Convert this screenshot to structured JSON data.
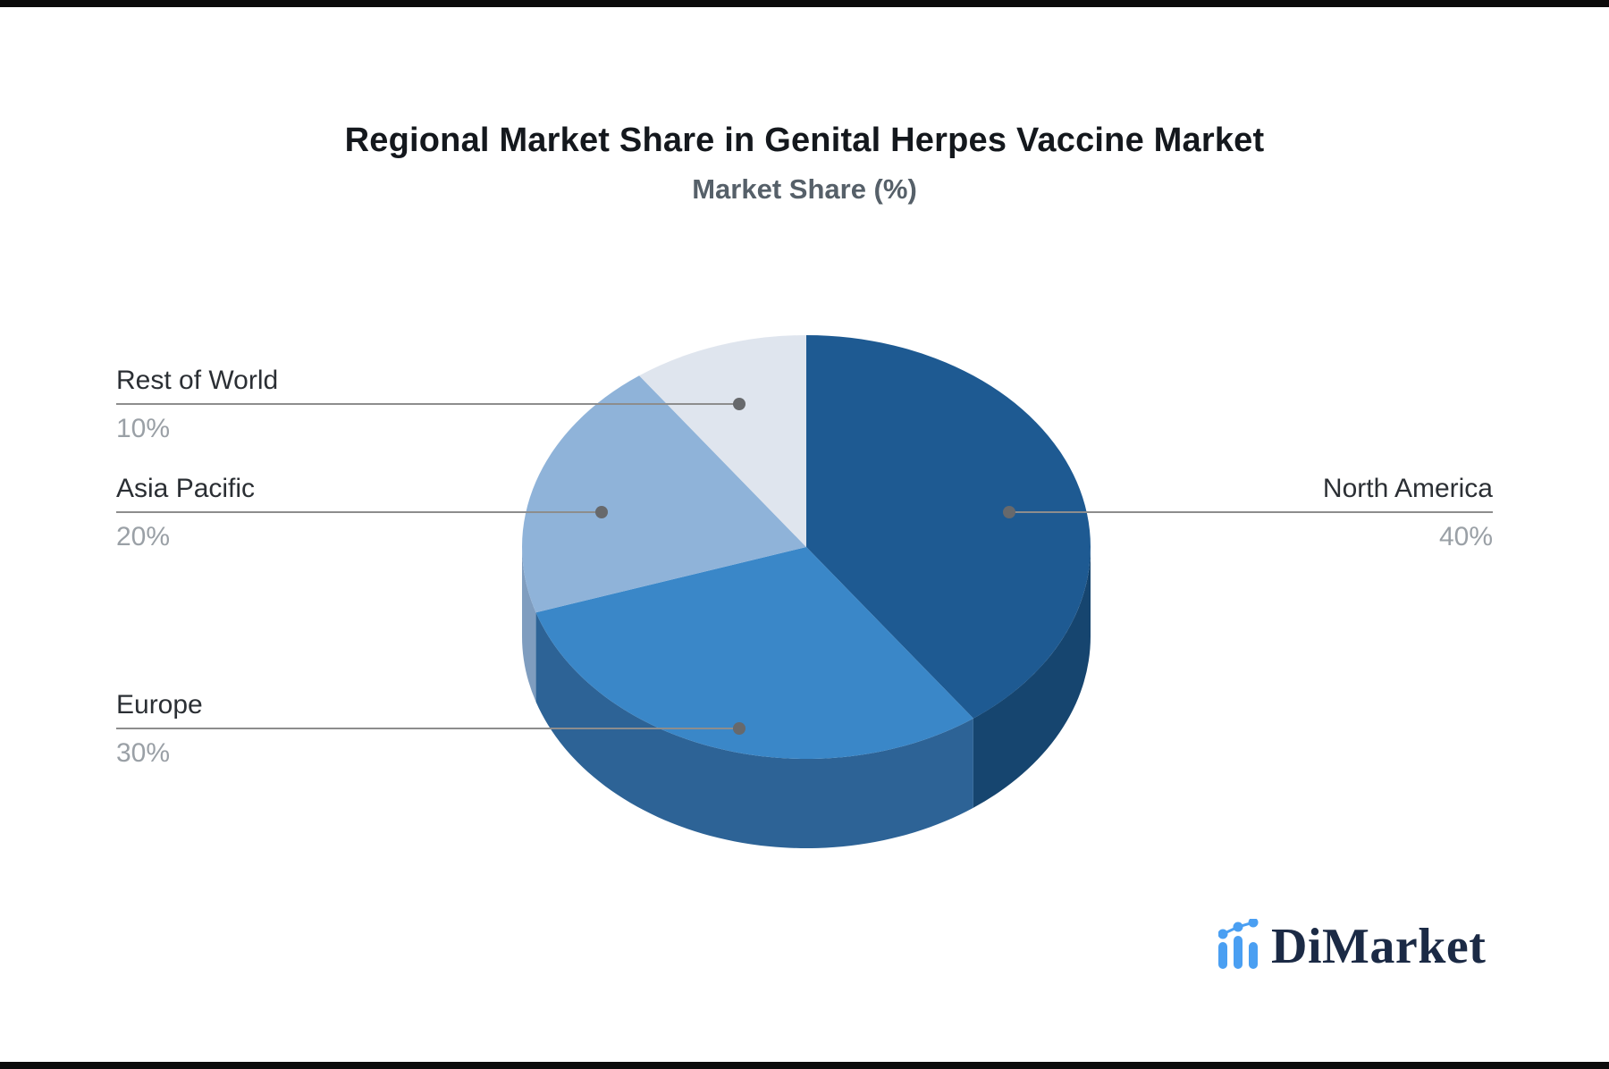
{
  "page": {
    "title": "Regional Market Share in Genital Herpes Vaccine Market",
    "subtitle": "Market Share (%)"
  },
  "chart_data": {
    "type": "pie",
    "title": "Regional Market Share in Genital Herpes Vaccine Market",
    "subtitle": "Market Share (%)",
    "style": "3d-pie",
    "start_angle_deg": 0,
    "direction": "clockwise",
    "legend_position": "none",
    "label_style": "callout-lines",
    "slices": [
      {
        "label": "North America",
        "value": 40,
        "display": "40%",
        "color": "#1e5a92",
        "side_color": "#16456f"
      },
      {
        "label": "Europe",
        "value": 30,
        "display": "30%",
        "color": "#3a87c8",
        "side_color": "#2d6396"
      },
      {
        "label": "Asia Pacific",
        "value": 20,
        "display": "20%",
        "color": "#8fb3d9",
        "side_color": "#7f9dbf"
      },
      {
        "label": "Rest of World",
        "value": 10,
        "display": "10%",
        "color": "#dfe5ee",
        "side_color": "#c5cedd"
      }
    ],
    "callout_line_color": "#8d8d8d",
    "label_text_color": "#2b2f34",
    "percent_text_color": "#9aa0a6"
  },
  "branding": {
    "logo_text": "DiMarket",
    "logo_icon": "bar-chart-trend-icon",
    "logo_text_color": "#1b2a45",
    "logo_accent_color": "#4a9ff2"
  }
}
